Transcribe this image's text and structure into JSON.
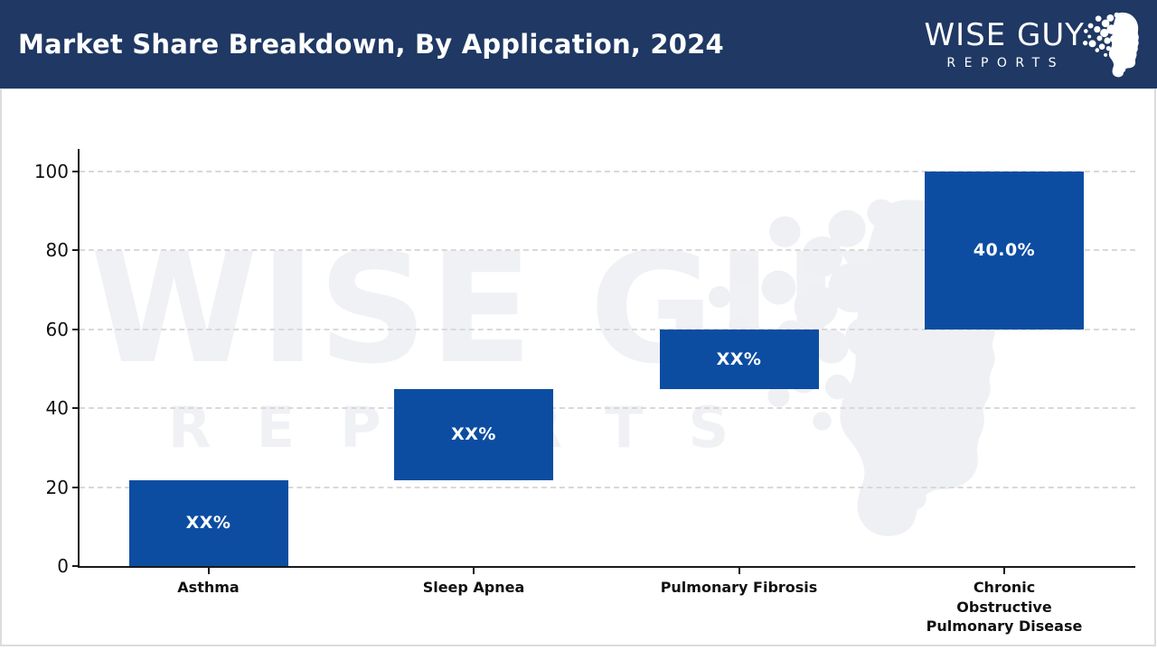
{
  "header": {
    "title": "Market Share Breakdown, By Application, 2024",
    "logo": {
      "line1": "WISE GUY",
      "line2": "REPORTS"
    },
    "bg_color": "#1f3864"
  },
  "watermark": {
    "line1": "WISE GUY",
    "line2": "REPORTS"
  },
  "chart_data": {
    "type": "bar",
    "subtype": "waterfall",
    "title": "Market Share Breakdown, By Application, 2024",
    "categories": [
      "Asthma",
      "Sleep Apnea",
      "Pulmonary Fibrosis",
      "Chronic\nObstructive\nPulmonary Disease"
    ],
    "bars": [
      {
        "category": "Asthma",
        "start": 0,
        "end": 21.8,
        "label": "XX%"
      },
      {
        "category": "Sleep Apnea",
        "start": 21.8,
        "end": 44.8,
        "label": "XX%"
      },
      {
        "category": "Pulmonary Fibrosis",
        "start": 44.8,
        "end": 60.0,
        "label": "XX%"
      },
      {
        "category": "Chronic Obstructive Pulmonary Disease",
        "start": 60.0,
        "end": 100.0,
        "label": "40.0%"
      }
    ],
    "yticks": [
      0,
      20,
      40,
      60,
      80,
      100
    ],
    "ylim": [
      0,
      105
    ],
    "xlabel": "",
    "ylabel": "",
    "grid": "horizontal-dashed",
    "legend": "none",
    "bar_color": "#0c4da2",
    "value_label_color": "#ffffff",
    "axis_color": "#1a1a1a",
    "gridline_color": "#d9d9d9"
  }
}
